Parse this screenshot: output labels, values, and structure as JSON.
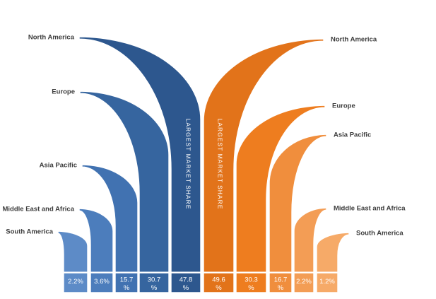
{
  "page": {
    "background": "#ffffff"
  },
  "chart_data": {
    "type": "area",
    "variant": "mirrored-funnel-swoosh",
    "title": "",
    "grid": false,
    "legend_position": "none",
    "center_labels": {
      "left": "LARGEST MARKET SHARE",
      "right": "LARGEST MARKET SHARE"
    },
    "text_colors": {
      "region_label": "#3c3c3c",
      "value_label": "#ffffff",
      "center_label": "#ffffff"
    },
    "sides": {
      "left": {
        "name": "left-funnel",
        "color_scheme": "blue",
        "palette": [
          "#2d578e",
          "#36659f",
          "#4172b1",
          "#4c7dbc",
          "#5d8bc7"
        ],
        "regions": [
          {
            "label": "North America",
            "value": 47.8,
            "display": "47.8 %",
            "color": "#2d578e"
          },
          {
            "label": "Europe",
            "value": 30.7,
            "display": "30.7 %",
            "color": "#36659f"
          },
          {
            "label": "Asia Pacific",
            "value": 15.7,
            "display": "15.7 %",
            "color": "#4172b1"
          },
          {
            "label": "Middle East and Africa",
            "value": 3.6,
            "display": "3.6%",
            "color": "#4c7dbc"
          },
          {
            "label": "South America",
            "value": 2.2,
            "display": "2.2%",
            "color": "#5d8bc7"
          }
        ]
      },
      "right": {
        "name": "right-funnel",
        "color_scheme": "orange",
        "palette": [
          "#e2731a",
          "#ee7d1f",
          "#f08e3d",
          "#f39d55",
          "#f6aa68"
        ],
        "regions": [
          {
            "label": "North America",
            "value": 49.6,
            "display": "49.6 %",
            "color": "#e2731a"
          },
          {
            "label": "Europe",
            "value": 30.3,
            "display": "30.3 %",
            "color": "#ee7d1f"
          },
          {
            "label": "Asia Pacific",
            "value": 16.7,
            "display": "16.7 %",
            "color": "#f08e3d"
          },
          {
            "label": "Middle East and Africa",
            "value": 2.2,
            "display": "2.2%",
            "color": "#f39d55"
          },
          {
            "label": "South America",
            "value": 1.2,
            "display": "1.2%",
            "color": "#f6aa68"
          }
        ]
      }
    }
  }
}
